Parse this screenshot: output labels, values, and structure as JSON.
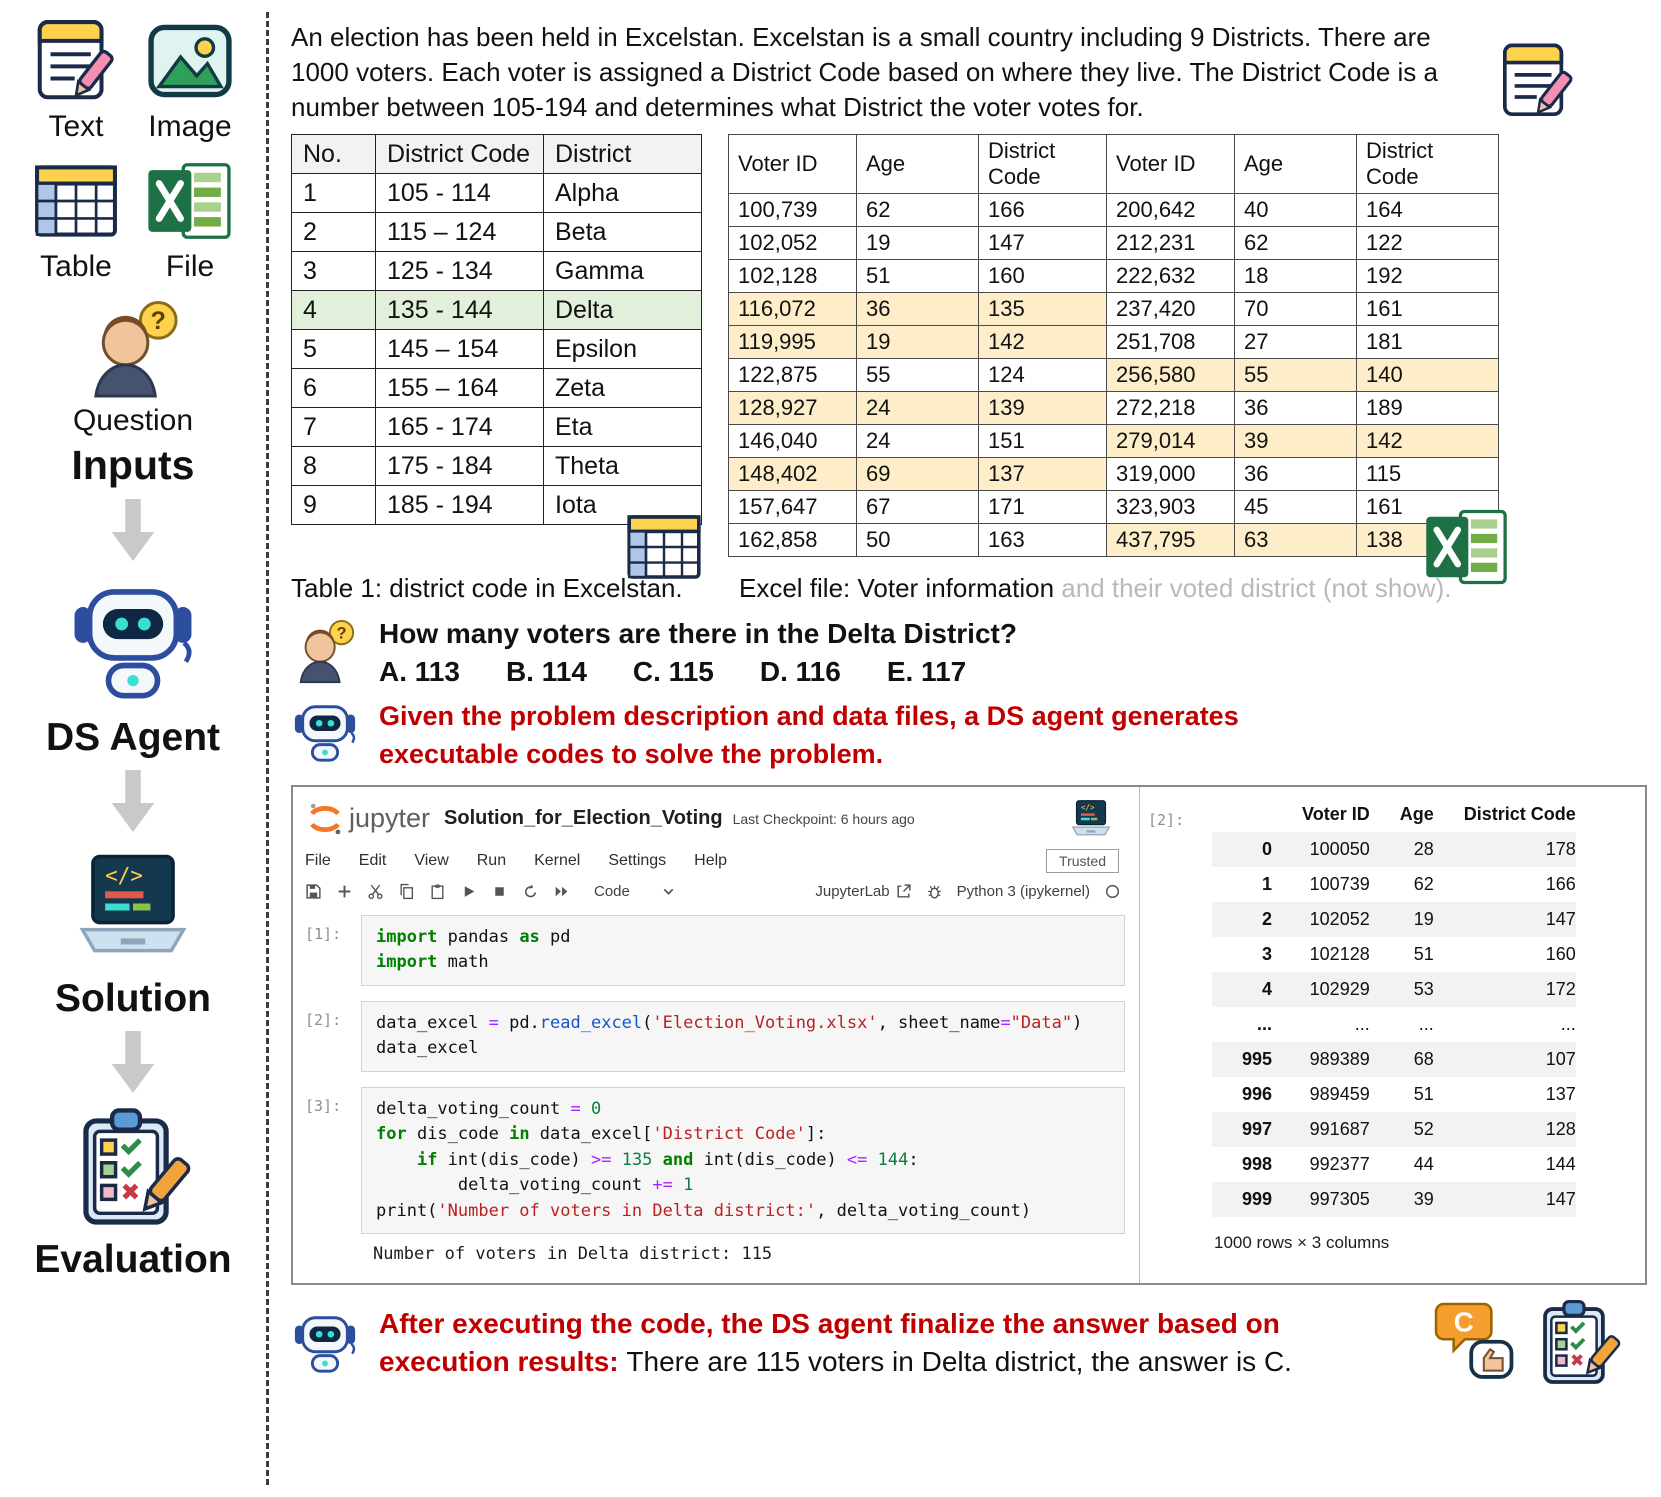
{
  "colors": {
    "accent_red": "#c00000",
    "highlight_green": "#e2efda",
    "highlight_yellow": "#fdeec9",
    "jupyter_orange": "#f37726"
  },
  "sidebar": {
    "inputs": {
      "title": "Inputs",
      "items": [
        {
          "label": "Text",
          "icon": "text-document-icon"
        },
        {
          "label": "Image",
          "icon": "image-icon"
        },
        {
          "label": "Table",
          "icon": "table-icon"
        },
        {
          "label": "File",
          "icon": "excel-file-icon"
        },
        {
          "label": "Question",
          "icon": "question-person-icon"
        }
      ]
    },
    "stages": [
      {
        "label": "DS Agent",
        "icon": "robot-icon"
      },
      {
        "label": "Solution",
        "icon": "laptop-code-icon"
      },
      {
        "label": "Evaluation",
        "icon": "evaluation-clipboard-icon"
      }
    ]
  },
  "problem": {
    "description": "An election has been held in Excelstan. Excelstan is a small country including 9 Districts. There are 1000 voters. Each voter is assigned a District Code based on where they live. The District Code is a number between 105-194 and determines what District the voter votes for."
  },
  "district_table": {
    "headers": [
      "No.",
      "District Code",
      "District"
    ],
    "rows": [
      [
        "1",
        "105 - 114",
        "Alpha"
      ],
      [
        "2",
        "115 – 124",
        "Beta"
      ],
      [
        "3",
        "125 - 134",
        "Gamma"
      ],
      [
        "4",
        "135 - 144",
        "Delta"
      ],
      [
        "5",
        "145 – 154",
        "Epsilon"
      ],
      [
        "6",
        "155 – 164",
        "Zeta"
      ],
      [
        "7",
        "165 - 174",
        "Eta"
      ],
      [
        "8",
        "175 - 184",
        "Theta"
      ],
      [
        "9",
        "185 - 194",
        "Iota"
      ]
    ],
    "highlight_row": 3,
    "caption": "Table 1: district code in Excelstan."
  },
  "voter_table": {
    "headers": [
      "Voter ID",
      "Age",
      "District Code",
      "Voter ID",
      "Age",
      "District Code"
    ],
    "rows": [
      {
        "left": [
          "100,739",
          "62",
          "166"
        ],
        "left_hl": false,
        "right": [
          "200,642",
          "40",
          "164"
        ],
        "right_hl": false
      },
      {
        "left": [
          "102,052",
          "19",
          "147"
        ],
        "left_hl": false,
        "right": [
          "212,231",
          "62",
          "122"
        ],
        "right_hl": false
      },
      {
        "left": [
          "102,128",
          "51",
          "160"
        ],
        "left_hl": false,
        "right": [
          "222,632",
          "18",
          "192"
        ],
        "right_hl": false
      },
      {
        "left": [
          "116,072",
          "36",
          "135"
        ],
        "left_hl": true,
        "right": [
          "237,420",
          "70",
          "161"
        ],
        "right_hl": false
      },
      {
        "left": [
          "119,995",
          "19",
          "142"
        ],
        "left_hl": true,
        "right": [
          "251,708",
          "27",
          "181"
        ],
        "right_hl": false
      },
      {
        "left": [
          "122,875",
          "55",
          "124"
        ],
        "left_hl": false,
        "right": [
          "256,580",
          "55",
          "140"
        ],
        "right_hl": true
      },
      {
        "left": [
          "128,927",
          "24",
          "139"
        ],
        "left_hl": true,
        "right": [
          "272,218",
          "36",
          "189"
        ],
        "right_hl": false
      },
      {
        "left": [
          "146,040",
          "24",
          "151"
        ],
        "left_hl": false,
        "right": [
          "279,014",
          "39",
          "142"
        ],
        "right_hl": true
      },
      {
        "left": [
          "148,402",
          "69",
          "137"
        ],
        "left_hl": true,
        "right": [
          "319,000",
          "36",
          "115"
        ],
        "right_hl": false
      },
      {
        "left": [
          "157,647",
          "67",
          "171"
        ],
        "left_hl": false,
        "right": [
          "323,903",
          "45",
          "161"
        ],
        "right_hl": false
      },
      {
        "left": [
          "162,858",
          "50",
          "163"
        ],
        "left_hl": false,
        "right": [
          "437,795",
          "63",
          "138"
        ],
        "right_hl": true
      }
    ],
    "caption_main": "Excel file: Voter information",
    "caption_gray": " and their voted district (not show)."
  },
  "question": {
    "text": "How many voters are there in the Delta District?",
    "options": [
      "A. 113",
      "B. 114",
      "C. 115",
      "D. 116",
      "E. 117"
    ]
  },
  "agent_statement_1": "Given the problem description and data files, a DS agent generates executable codes to solve the problem.",
  "notebook": {
    "logo_text": "jupyter",
    "title": "Solution_for_Election_Voting",
    "checkpoint": "Last Checkpoint: 6 hours ago",
    "trusted_label": "Trusted",
    "menu": [
      "File",
      "Edit",
      "View",
      "Run",
      "Kernel",
      "Settings",
      "Help"
    ],
    "toolbar": {
      "cell_type": "Code",
      "jupyterlab_label": "JupyterLab",
      "kernel_label": "Python 3 (ipykernel)"
    },
    "cells": [
      {
        "label": "[1]:",
        "lines": [
          [
            [
              "kw",
              "import"
            ],
            [
              "t",
              " pandas "
            ],
            [
              "kw",
              "as"
            ],
            [
              "t",
              " pd"
            ]
          ],
          [
            [
              "kw",
              "import"
            ],
            [
              "t",
              " math"
            ]
          ]
        ]
      },
      {
        "label": "[2]:",
        "lines": [
          [
            [
              "t",
              "data_excel "
            ],
            [
              "op",
              "="
            ],
            [
              "t",
              " pd."
            ],
            [
              "fn",
              "read_excel"
            ],
            [
              "t",
              "("
            ],
            [
              "str",
              "'Election_Voting.xlsx'"
            ],
            [
              "t",
              ", sheet_name"
            ],
            [
              "op",
              "="
            ],
            [
              "str",
              "\"Data\""
            ],
            [
              "t",
              ")"
            ]
          ],
          [
            [
              "t",
              "data_excel"
            ]
          ]
        ]
      },
      {
        "label": "[3]:",
        "lines": [
          [
            [
              "t",
              "delta_voting_count "
            ],
            [
              "op",
              "="
            ],
            [
              "t",
              " "
            ],
            [
              "num",
              "0"
            ]
          ],
          [
            [
              "kw",
              "for"
            ],
            [
              "t",
              " dis_code "
            ],
            [
              "kw",
              "in"
            ],
            [
              "t",
              " data_excel["
            ],
            [
              "str",
              "'District Code'"
            ],
            [
              "t",
              "]:"
            ]
          ],
          [
            [
              "t",
              "    "
            ],
            [
              "kw",
              "if"
            ],
            [
              "t",
              " int(dis_code) "
            ],
            [
              "op",
              "&gt;"
            ],
            [
              "t",
              ""
            ]
          ],
          [
            [
              "t",
              "        delta_voting_count "
            ],
            [
              "op",
              "+="
            ],
            [
              "t",
              " "
            ],
            [
              "num",
              "1"
            ]
          ],
          [
            [
              "t",
              "print("
            ],
            [
              "str",
              "'Number of voters in Delta district:'"
            ],
            [
              "t",
              ", delta_voting_count)"
            ]
          ]
        ],
        "output": "Number of voters in Delta district: 115"
      }
    ],
    "cell3_line3": [
      [
        "t",
        "    "
      ],
      [
        "kw",
        "if"
      ],
      [
        "t",
        " int(dis_code) "
      ],
      [
        "op",
        ">="
      ],
      [
        "t",
        " "
      ],
      [
        "num",
        "135"
      ],
      [
        "t",
        " "
      ],
      [
        "kw",
        "and"
      ],
      [
        "t",
        " int(dis_code) "
      ],
      [
        "op",
        "<="
      ],
      [
        "t",
        " "
      ],
      [
        "num",
        "144"
      ],
      [
        "t",
        ":"
      ]
    ]
  },
  "dataframe": {
    "exec_label": "[2]:",
    "headers": [
      "",
      "Voter ID",
      "Age",
      "District Code"
    ],
    "rows": [
      [
        "0",
        "100050",
        "28",
        "178"
      ],
      [
        "1",
        "100739",
        "62",
        "166"
      ],
      [
        "2",
        "102052",
        "19",
        "147"
      ],
      [
        "3",
        "102128",
        "51",
        "160"
      ],
      [
        "4",
        "102929",
        "53",
        "172"
      ],
      [
        "...",
        "...",
        "...",
        "..."
      ],
      [
        "995",
        "989389",
        "68",
        "107"
      ],
      [
        "996",
        "989459",
        "51",
        "137"
      ],
      [
        "997",
        "991687",
        "52",
        "128"
      ],
      [
        "998",
        "992377",
        "44",
        "144"
      ],
      [
        "999",
        "997305",
        "39",
        "147"
      ]
    ],
    "footer": "1000 rows × 3 columns"
  },
  "final_statement": {
    "red": "After executing the code, the DS agent finalize the answer based on execution results: ",
    "black": "There are 115 voters in Delta district, the answer is C."
  }
}
